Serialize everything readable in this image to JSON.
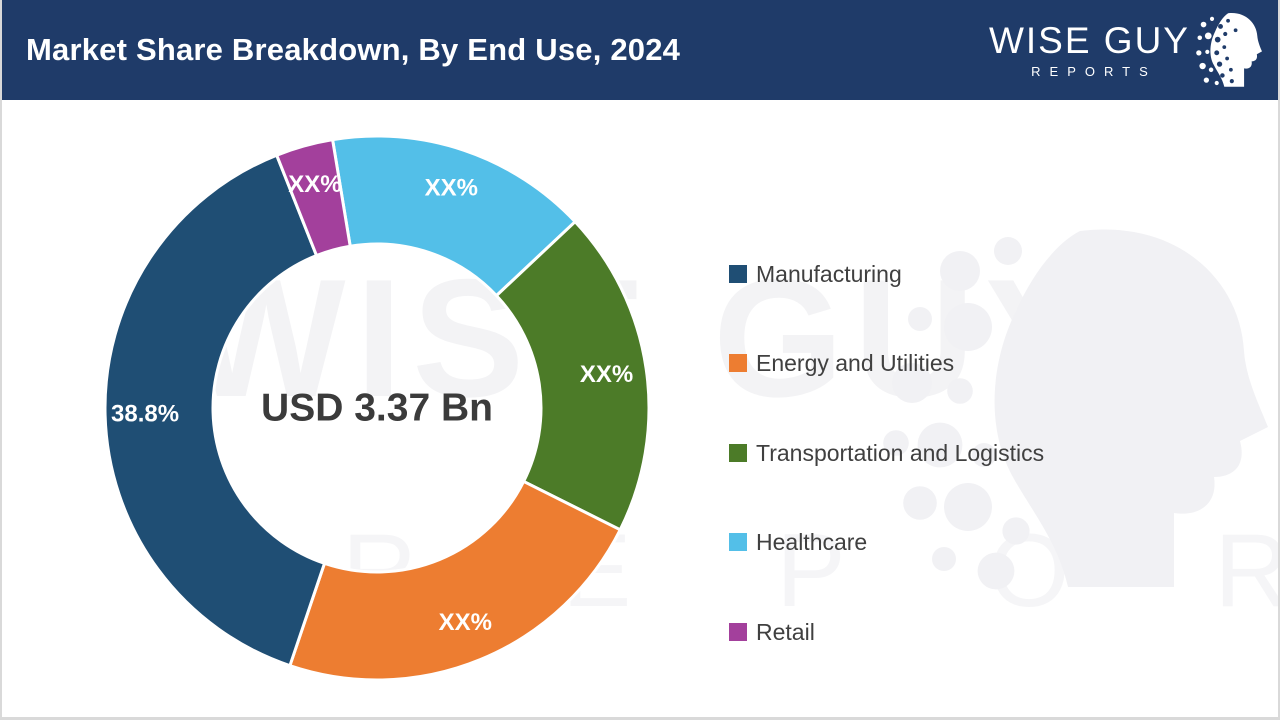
{
  "header": {
    "title": "Market Share Breakdown, By End Use, 2024",
    "logo": {
      "line1": "WISE GUY",
      "line2": "REPORTS"
    }
  },
  "watermark": {
    "line1": "WISE GUY",
    "line2": "R E P O R T S"
  },
  "colors": {
    "header_bg": "#1f3b69",
    "title_text": "#ffffff",
    "center_text": "#3b3b3b",
    "legend_text": "#404040",
    "slice_label_text": "#ffffff",
    "body_border": "#d9d9d9",
    "watermark": "#f3f3f5"
  },
  "chart_data": {
    "type": "donut",
    "title": "Market Share Breakdown, By End Use, 2024",
    "center_label": "USD 3.37 Bn",
    "start_angle_deg": -9.4,
    "draw_order": [
      "Healthcare",
      "Transportation and Logistics",
      "Energy and Utilities",
      "Manufacturing",
      "Retail"
    ],
    "segments": [
      {
        "name": "Manufacturing",
        "value_pct": 38.8,
        "slice_label": "38.8%",
        "color": "#1f4e74"
      },
      {
        "name": "Energy and Utilities",
        "value_pct": 22.8,
        "slice_label": "XX%",
        "color": "#ed7d31"
      },
      {
        "name": "Transportation and Logistics",
        "value_pct": 19.4,
        "slice_label": "XX%",
        "color": "#4c7b28"
      },
      {
        "name": "Healthcare",
        "value_pct": 15.6,
        "slice_label": "XX%",
        "color": "#53bfe8"
      },
      {
        "name": "Retail",
        "value_pct": 3.4,
        "slice_label": "XX%",
        "color": "#a3409c"
      }
    ],
    "legend_position": "right",
    "notes": "white 3px gaps between slices; value labels inside ring; center shows market size"
  }
}
